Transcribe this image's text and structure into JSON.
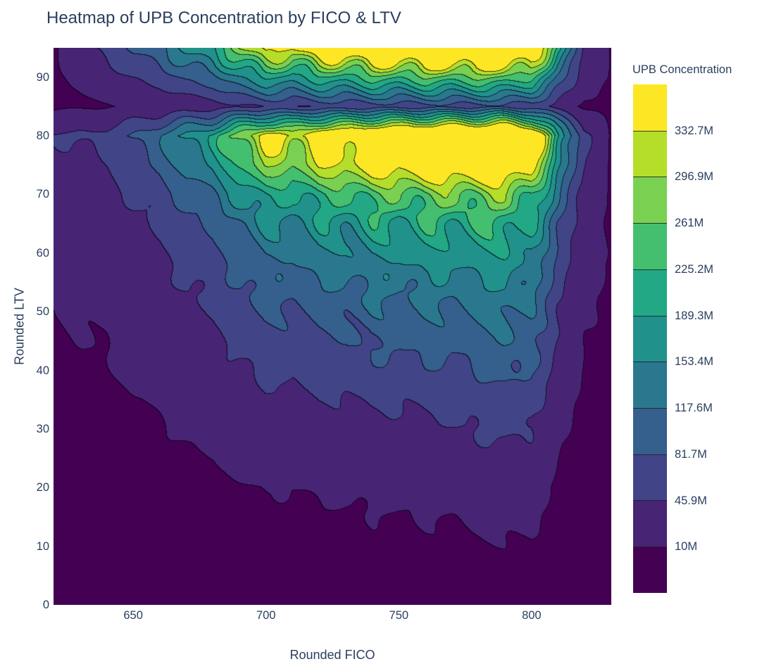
{
  "chart_data": {
    "type": "contour",
    "title": "Heatmap of UPB Concentration by FICO & LTV",
    "xlabel": "Rounded FICO",
    "ylabel": "Rounded LTV",
    "x_range": [
      620,
      830
    ],
    "y_range": [
      0,
      95
    ],
    "x_ticks": [
      650,
      700,
      750,
      800
    ],
    "y_ticks": [
      0,
      10,
      20,
      30,
      40,
      50,
      60,
      70,
      80,
      90
    ],
    "x": [
      620,
      630,
      640,
      650,
      660,
      670,
      680,
      690,
      700,
      710,
      720,
      730,
      740,
      750,
      760,
      770,
      780,
      790,
      800,
      810,
      820,
      830
    ],
    "y": [
      0,
      5,
      10,
      15,
      20,
      25,
      30,
      35,
      40,
      45,
      50,
      55,
      60,
      65,
      70,
      75,
      80,
      85,
      90,
      95
    ],
    "z_millions": [
      [
        0.2,
        0.2,
        0.2,
        0.4,
        0.5,
        0.7,
        0.8,
        1.2,
        1.6,
        1.4,
        1.8,
        1.7,
        2.0,
        1.9,
        2.1,
        2.0,
        2.2,
        2.1,
        1.9,
        0.9,
        0.2,
        0.1
      ],
      [
        0.3,
        0.4,
        0.5,
        0.8,
        1.0,
        1.4,
        1.7,
        2.5,
        3.1,
        2.8,
        3.5,
        3.4,
        4.0,
        3.7,
        4.2,
        4.0,
        4.3,
        4.2,
        3.8,
        1.8,
        0.5,
        0.2
      ],
      [
        0.6,
        0.8,
        0.9,
        1.4,
        1.7,
        2.6,
        3.0,
        4.5,
        5.6,
        5.1,
        6.3,
        6.1,
        7.2,
        6.7,
        7.6,
        7.2,
        7.8,
        9.5,
        8.8,
        3.2,
        0.9,
        0.4
      ],
      [
        0.8,
        1.1,
        1.2,
        1.9,
        2.4,
        3.6,
        4.2,
        6.2,
        7.8,
        7.1,
        8.8,
        8.5,
        10.0,
        9.3,
        10.6,
        10.0,
        12.4,
        14.7,
        13.3,
        4.5,
        1.2,
        0.5
      ],
      [
        1.1,
        1.5,
        1.7,
        2.7,
        3.4,
        5.0,
        5.9,
        8.7,
        10.9,
        9.9,
        12.3,
        11.9,
        14.0,
        13.0,
        14.8,
        14.0,
        18.9,
        20.6,
        18.6,
        6.3,
        1.7,
        0.7
      ],
      [
        1.9,
        2.6,
        2.9,
        4.6,
        5.8,
        8.6,
        10.1,
        14.9,
        18.7,
        17.0,
        21.1,
        20.4,
        24.0,
        22.3,
        25.4,
        24.0,
        33.7,
        35.3,
        32.3,
        10.8,
        2.9,
        1.2
      ],
      [
        3.0,
        4.2,
        4.6,
        7.2,
        9.1,
        13.7,
        16.0,
        23.6,
        29.6,
        27.0,
        33.4,
        32.3,
        38.0,
        35.3,
        40.3,
        42.0,
        49.2,
        55.9,
        48.5,
        17.1,
        4.6,
        1.9
      ],
      [
        4.2,
        5.7,
        6.2,
        9.9,
        12.5,
        18.7,
        21.8,
        32.2,
        40.6,
        36.9,
        45.8,
        44.2,
        52.0,
        48.4,
        55.1,
        57.2,
        64.6,
        70.9,
        62.9,
        23.4,
        6.2,
        2.6
      ],
      [
        5.8,
        7.9,
        8.6,
        13.7,
        17.3,
        25.9,
        30.2,
        44.6,
        56.2,
        51.1,
        63.4,
        61.2,
        72.0,
        67.0,
        76.3,
        72.0,
        87.1,
        94.5,
        85.5,
        32.4,
        8.6,
        3.6
      ],
      [
        7.2,
        9.9,
        10.8,
        17.1,
        21.6,
        32.4,
        37.8,
        55.8,
        70.2,
        63.9,
        79.2,
        76.5,
        90.0,
        83.7,
        95.4,
        90.0,
        106.9,
        113.4,
        102.6,
        40.5,
        10.8,
        4.5
      ],
      [
        8.8,
        12.1,
        13.2,
        20.9,
        26.4,
        39.6,
        46.2,
        68.2,
        85.8,
        78.1,
        96.8,
        93.5,
        110.0,
        102.3,
        116.6,
        110.0,
        128.3,
        132.3,
        115.5,
        49.5,
        13.2,
        5.5
      ],
      [
        10.9,
        15.0,
        16.3,
        25.8,
        32.6,
        49.0,
        57.1,
        84.3,
        106.1,
        96.6,
        119.7,
        115.6,
        136.0,
        126.5,
        144.2,
        136.0,
        146.9,
        155.0,
        131.0,
        61.2,
        16.3,
        6.8
      ],
      [
        13.4,
        18.5,
        20.2,
        31.9,
        40.3,
        60.5,
        70.6,
        104.2,
        131.0,
        119.3,
        147.8,
        142.8,
        168.0,
        156.2,
        178.1,
        168.0,
        181.4,
        186.0,
        159.6,
        75.6,
        20.2,
        8.4
      ],
      [
        16.3,
        22.4,
        24.5,
        38.8,
        49.0,
        73.4,
        85.7,
        126.5,
        159.1,
        144.8,
        179.5,
        173.4,
        204.0,
        189.7,
        216.2,
        204.0,
        220.3,
        224.0,
        193.8,
        91.8,
        24.5,
        6.0
      ],
      [
        20.8,
        28.6,
        31.2,
        49.4,
        62.4,
        93.6,
        109.2,
        161.2,
        202.8,
        184.6,
        228.8,
        221.0,
        260.0,
        241.8,
        275.6,
        260.0,
        280.8,
        273.0,
        247.0,
        117.0,
        31.2,
        6.0
      ],
      [
        30.4,
        41.8,
        45.6,
        72.2,
        91.2,
        136.8,
        159.6,
        235.6,
        296.4,
        269.8,
        334.4,
        323.0,
        380.0,
        353.4,
        402.8,
        380.0,
        410.4,
        399.0,
        361.0,
        171.0,
        45.6,
        7.0
      ],
      [
        47.0,
        50.6,
        55.2,
        87.4,
        110.4,
        165.6,
        193.2,
        285.2,
        358.8,
        326.6,
        404.8,
        391.0,
        460.0,
        427.8,
        487.6,
        460.0,
        496.8,
        483.0,
        437.0,
        207.0,
        55.2,
        8.0
      ],
      [
        5.1,
        7.0,
        7.7,
        12.2,
        15.4,
        23.0,
        26.9,
        39.7,
        49.9,
        45.4,
        56.3,
        53.8,
        64.0,
        59.5,
        67.8,
        64.0,
        69.1,
        67.2,
        60.8,
        28.8,
        6.0,
        3.2
      ],
      [
        5.0,
        16.0,
        29.8,
        47.1,
        59.5,
        89.3,
        104.2,
        153.8,
        193.4,
        176.1,
        218.2,
        210.8,
        248.0,
        230.6,
        262.9,
        248.0,
        267.8,
        260.4,
        235.6,
        111.6,
        25.0,
        9.0
      ],
      [
        7.0,
        30.0,
        55.2,
        87.4,
        110.4,
        165.6,
        193.2,
        285.2,
        358.8,
        326.6,
        404.8,
        391.0,
        460.0,
        427.8,
        487.6,
        460.0,
        496.8,
        483.0,
        437.0,
        207.0,
        40.0,
        8.0
      ]
    ],
    "contour_thresholds_millions": [
      10,
      45.9,
      81.7,
      117.6,
      153.4,
      189.3,
      225.2,
      261,
      296.9,
      332.7
    ],
    "colorbar": {
      "title": "UPB Concentration",
      "tick_labels": [
        "10M",
        "45.9M",
        "81.7M",
        "117.6M",
        "153.4M",
        "189.3M",
        "225.2M",
        "261M",
        "296.9M",
        "332.7M"
      ]
    },
    "colorscale_viridis": [
      "#440154",
      "#482475",
      "#414487",
      "#355f8d",
      "#2a788e",
      "#21918c",
      "#22a884",
      "#44bf70",
      "#7ad151",
      "#b5de2b",
      "#fde725"
    ],
    "contour_line_color": "#1c1d26",
    "text_color": "#2a3f5f",
    "background_color": "#ffffff",
    "legend_position": "right"
  }
}
